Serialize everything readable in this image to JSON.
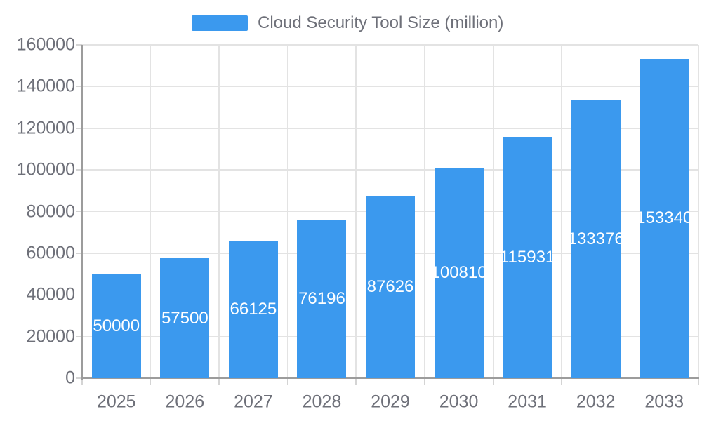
{
  "chart_data": {
    "type": "bar",
    "title": "Cloud Security Tool Size (million)",
    "legend": {
      "label": "Cloud Security Tool Size (million)",
      "swatch_color": "#3B99EE",
      "position": "top-center"
    },
    "categories": [
      "2025",
      "2026",
      "2027",
      "2028",
      "2029",
      "2030",
      "2031",
      "2032",
      "2033"
    ],
    "series": [
      {
        "name": "Cloud Security Tool Size (million)",
        "values": [
          50000,
          57500,
          66125,
          76196,
          87626,
          100810,
          115931,
          133376,
          153340
        ]
      }
    ],
    "bar_value_labels": [
      "50000",
      "57500",
      "66125",
      "76196",
      "87626",
      "100810",
      "115931",
      "133376",
      "153340"
    ],
    "bar_label_position": "inside-center",
    "xlabel": "",
    "ylabel": "",
    "ylim": [
      0,
      160000
    ],
    "ytick_step": 20000,
    "ytick_labels": [
      "0",
      "20000",
      "40000",
      "60000",
      "80000",
      "100000",
      "120000",
      "140000",
      "160000"
    ],
    "grid": "horizontal-and-vertical",
    "colors": {
      "bar": "#3B99EE",
      "axis_line": "#9C9C9C",
      "grid_line": "#E3E3E3",
      "tick_line": "#D4D4D4",
      "axis_text": "#6E7079",
      "legend_text": "#6E7079",
      "bar_label_text": "#FFFFFF",
      "background": "#FFFFFF"
    }
  }
}
